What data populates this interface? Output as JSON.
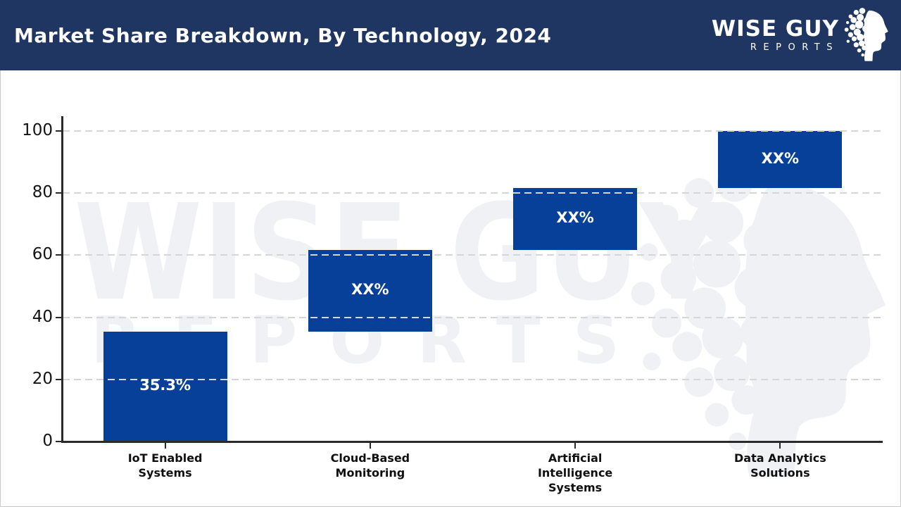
{
  "header": {
    "title": "Market Share Breakdown, By Technology, 2024",
    "logo": {
      "line1": "WISE GUY",
      "line2": "REPORTS"
    }
  },
  "watermark": {
    "line1": "WISE GUY",
    "line2": "REPORTS"
  },
  "chart_data": {
    "type": "bar",
    "subtype": "waterfall-stacked-percentage",
    "title": "Market Share Breakdown, By Technology, 2024",
    "categories": [
      "IoT Enabled\nSystems",
      "Cloud-Based\nMonitoring",
      "Artificial\nIntelligence\nSystems",
      "Data Analytics\nSolutions"
    ],
    "segments": [
      {
        "start": 0,
        "end": 35.3,
        "label": "35.3%"
      },
      {
        "start": 35.3,
        "end": 61.6,
        "label": "XX%"
      },
      {
        "start": 61.6,
        "end": 81.6,
        "label": "XX%"
      },
      {
        "start": 81.6,
        "end": 100,
        "label": "XX%"
      }
    ],
    "yticks": [
      0,
      20,
      40,
      60,
      80,
      100
    ],
    "ylim": [
      0,
      104.8
    ],
    "xlabel": "",
    "ylabel": "",
    "grid": true,
    "grid_style": "dashed",
    "legend": "none",
    "bar_color": "#074099",
    "grid_color": "#d6d6d6",
    "axis_color": "#2a2a2a",
    "label_color": "#ffffff"
  },
  "colors": {
    "header_bg": "#203662",
    "content_bg": "#ffffff",
    "watermark": "#f0f1f4",
    "border": "#c9c9c9"
  }
}
